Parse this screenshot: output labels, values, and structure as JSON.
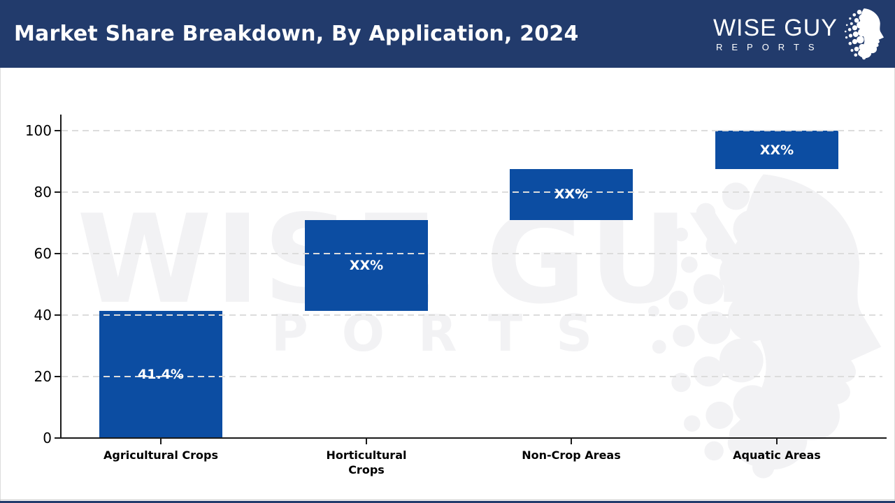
{
  "header": {
    "title": "Market Share Breakdown, By Application, 2024",
    "logo": {
      "line1": "WISE GUY",
      "line2": "REPORTS"
    }
  },
  "watermark": {
    "line1": "WISE GUY",
    "line2": "PORTS"
  },
  "chart_data": {
    "type": "bar",
    "subtype": "waterfall",
    "title": "Market Share Breakdown, By Application, 2024",
    "categories": [
      "Agricultural Crops",
      "Horticultural Crops",
      "Non-Crop Areas",
      "Aquatic Areas"
    ],
    "tick_labels": [
      "Agricultural Crops",
      "Horticultural\nCrops",
      "Non-Crop Areas",
      "Aquatic Areas"
    ],
    "segments": [
      {
        "category": "Agricultural Crops",
        "start": 0,
        "end": 41.4,
        "value": 41.4,
        "label": "41.4%"
      },
      {
        "category": "Horticultural Crops",
        "start": 41.4,
        "end": 71,
        "value": 29.6,
        "label": "XX%"
      },
      {
        "category": "Non-Crop Areas",
        "start": 71,
        "end": 87.5,
        "value": 16.5,
        "label": "XX%"
      },
      {
        "category": "Aquatic Areas",
        "start": 87.5,
        "end": 100,
        "value": 12.5,
        "label": "XX%"
      }
    ],
    "xlabel": "",
    "ylabel": "",
    "ylim": [
      0,
      100
    ],
    "yticks": [
      0,
      20,
      40,
      60,
      80,
      100
    ],
    "grid": "horizontal dashed, drawn over bars",
    "legend": "none",
    "bar_color": "#0c4da2",
    "bar_label_color": "#ffffff"
  },
  "colors": {
    "header_bg": "#223b6c",
    "footer_bg": "#223b6c",
    "bar": "#0c4da2",
    "gridline": "#dcdcdc",
    "axis": "#1a1a1a",
    "watermark": "#f2f2f4",
    "title_text": "#ffffff"
  }
}
